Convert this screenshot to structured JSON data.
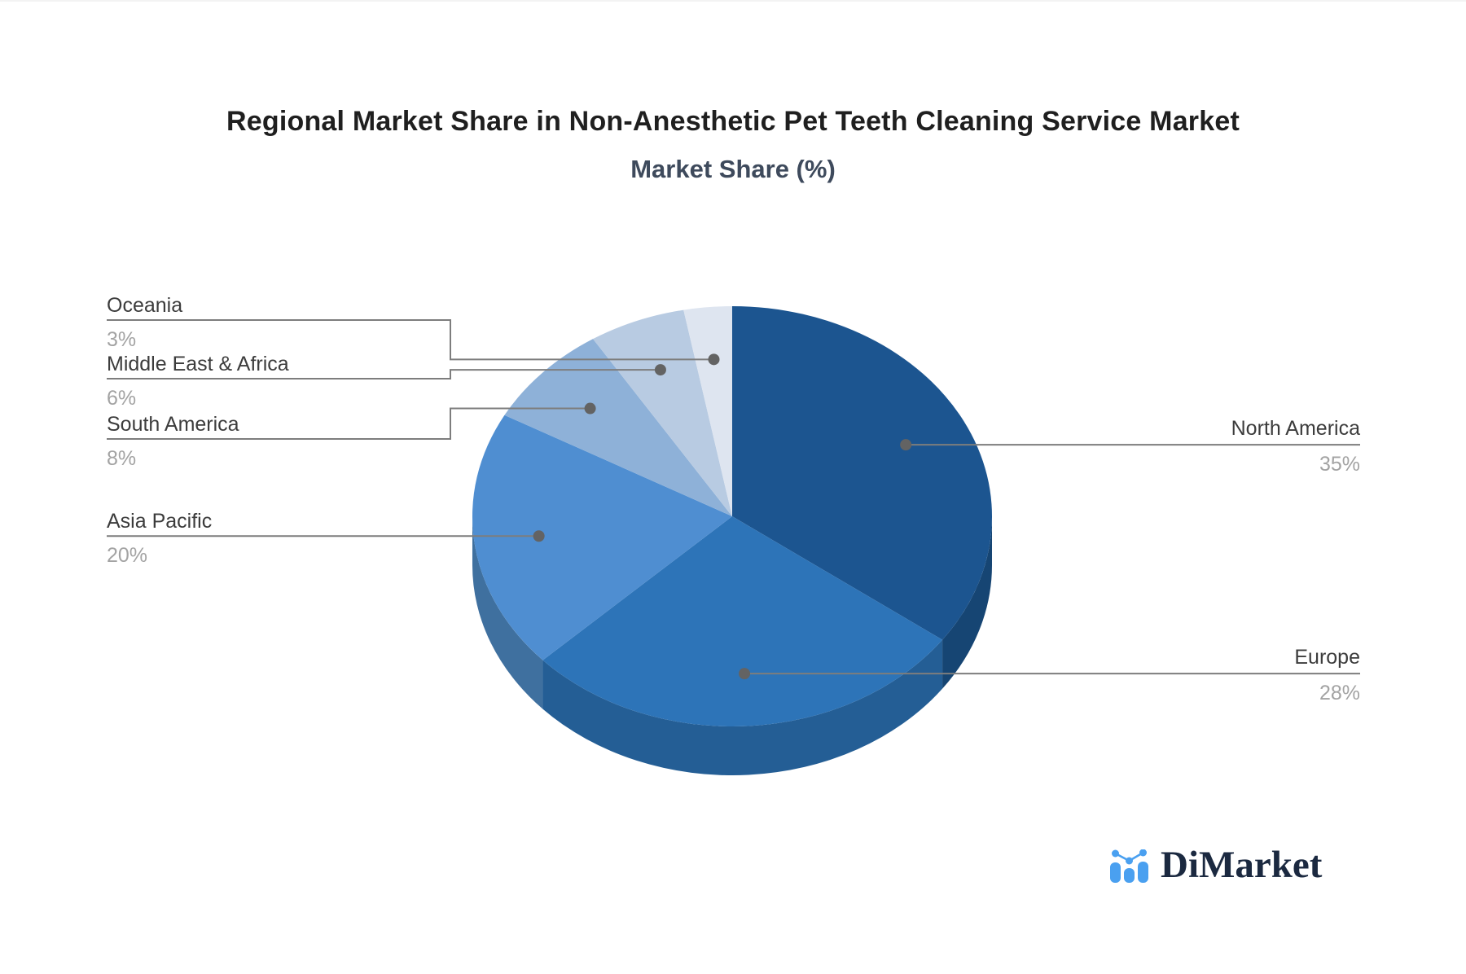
{
  "chart_data": {
    "type": "pie",
    "title": "Regional Market Share in Non-Anesthetic Pet Teeth Cleaning Service Market",
    "subtitle": "Market Share (%)",
    "unit": "%",
    "style": "3d-pie",
    "direction": "clockwise",
    "start_angle_deg": 0,
    "legend_position": "callout-labels",
    "line_color": "#7d7d7d",
    "dot_color": "#636363",
    "slices": [
      {
        "label": "North America",
        "value": 35,
        "pct_label": "35%",
        "color": "#1c5590",
        "side_color": "#164573",
        "callout_side": "right"
      },
      {
        "label": "Europe",
        "value": 28,
        "pct_label": "28%",
        "color": "#2d74b8",
        "side_color": "#245e95",
        "callout_side": "right"
      },
      {
        "label": "Asia Pacific",
        "value": 20,
        "pct_label": "20%",
        "color": "#4f8ed1",
        "side_color": "#3f709f",
        "callout_side": "left"
      },
      {
        "label": "South America",
        "value": 8,
        "pct_label": "8%",
        "color": "#8eb1d8",
        "side_color": "#74a0c9",
        "callout_side": "left"
      },
      {
        "label": "Middle East & Africa",
        "value": 6,
        "pct_label": "6%",
        "color": "#b8cbe2",
        "side_color": "#9db8d5",
        "callout_side": "left"
      },
      {
        "label": "Oceania",
        "value": 3,
        "pct_label": "3%",
        "color": "#dee5f0",
        "side_color": "#c3d2e5",
        "callout_side": "left"
      }
    ]
  },
  "logo": {
    "brand": "DiMarket",
    "icon": "bar-line-chart-logo-icon",
    "brand_color": "#1b2940",
    "icon_color": "#4aa0f0"
  }
}
